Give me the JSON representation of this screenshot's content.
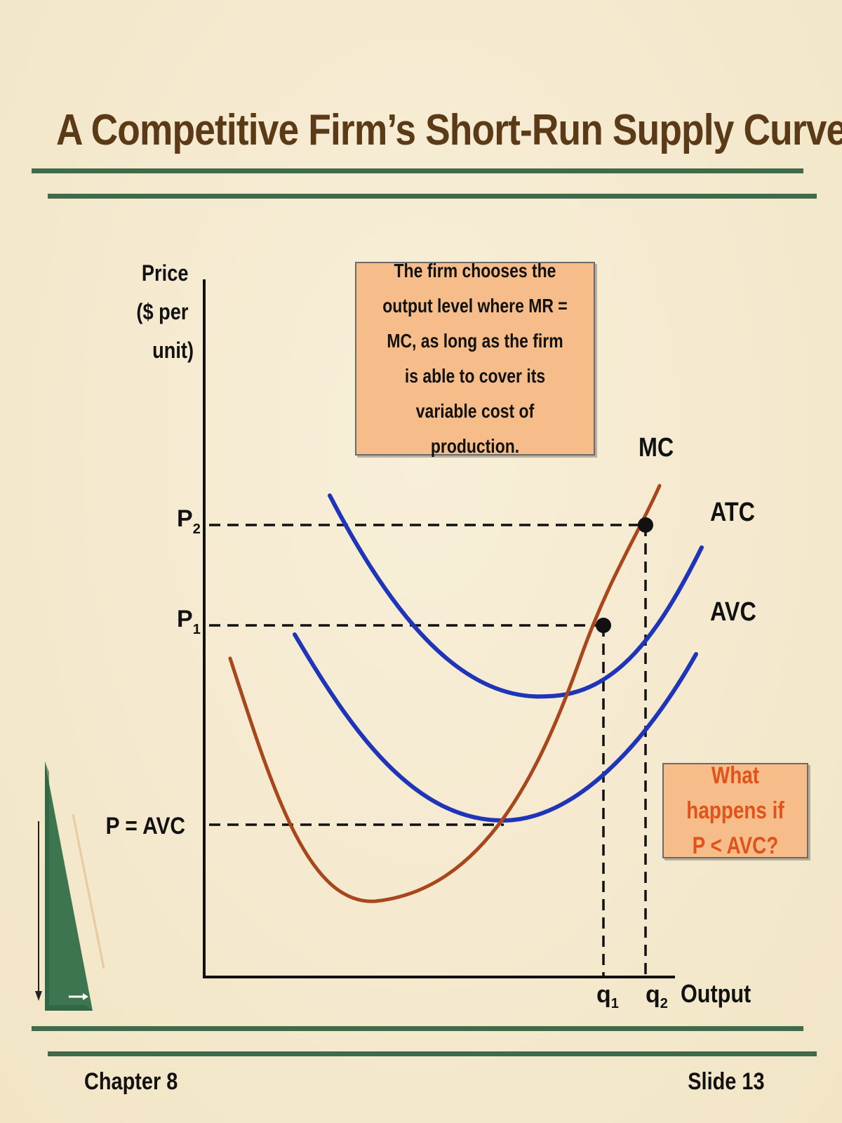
{
  "slide": {
    "title": "A Competitive Firm’s Short-Run Supply Curve",
    "footer_left": "Chapter 8",
    "footer_right": "Slide 13"
  },
  "callouts": {
    "main": "The firm chooses the output level where MR = MC, as long as the firm is able to cover its variable cost of production.",
    "question": "What happens if P < AVC?"
  },
  "diagram": {
    "y_axis_label_lines": [
      "Price",
      "($ per",
      "unit)"
    ],
    "x_axis_label": "Output",
    "curves": {
      "mc": "MC",
      "atc": "ATC",
      "avc": "AVC"
    },
    "price_levels": {
      "p2": {
        "letter": "P",
        "sub": "2"
      },
      "p1": {
        "letter": "P",
        "sub": "1"
      },
      "p_avc": "P = AVC"
    },
    "quantities": {
      "q1": {
        "letter": "q",
        "sub": "1"
      },
      "q2": {
        "letter": "q",
        "sub": "2"
      }
    },
    "colors": {
      "mc": "#a8471c",
      "atc": "#1f35b8",
      "avc": "#1f35b8",
      "axis": "#111111",
      "rules": "#3f6b4c",
      "callout_fill": "#f6bc8a",
      "question_text": "#e0541c"
    }
  }
}
